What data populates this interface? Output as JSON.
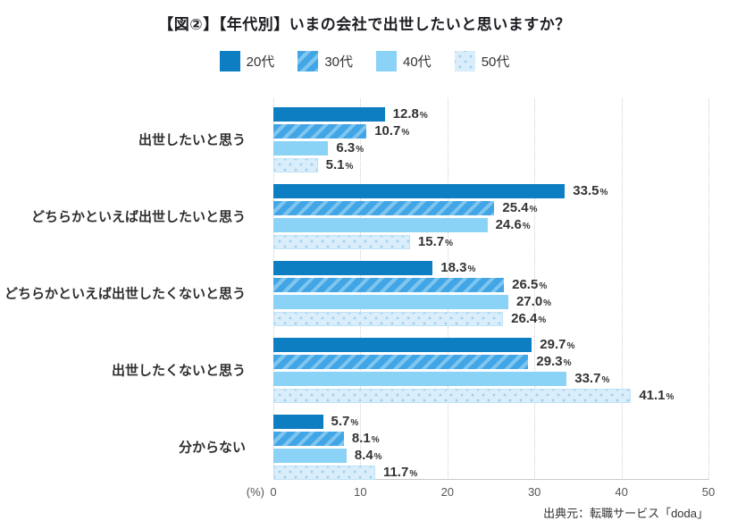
{
  "title": "【図②】【年代別】いまの会社で出世したいと思いますか？",
  "source": "出典元：転職サービス「doda」",
  "axis": {
    "unit_label": "(%)"
  },
  "colors": {
    "series_20s": "#0d7ec1",
    "series_30s_base": "#42a5e5",
    "series_30s_stripe": "#7ec6f0",
    "series_40s": "#8bd3f6",
    "series_50s_base": "#d9edfb",
    "series_50s_dot": "#9fcfec",
    "grid": "#cfcfcf",
    "text": "#333333"
  },
  "chart_data": {
    "type": "bar",
    "orientation": "horizontal",
    "title": "【図②】【年代別】いまの会社で出世したいと思いますか？",
    "categories": [
      "出世したいと思う",
      "どちらかといえば出世したいと思う",
      "どちらかといえば出世したくないと思う",
      "出世したくないと思う",
      "分からない"
    ],
    "series": [
      {
        "name": "20代",
        "pattern": "solid",
        "color": "#0d7ec1",
        "values": [
          12.8,
          33.5,
          18.3,
          29.7,
          5.7
        ],
        "value_labels": [
          "12.8",
          "33.5",
          "18.3",
          "29.7",
          "5.7"
        ]
      },
      {
        "name": "30代",
        "pattern": "stripes",
        "color": "#42a5e5",
        "stripe_color": "#7ec6f0",
        "values": [
          10.7,
          25.4,
          26.5,
          29.3,
          8.1
        ],
        "value_labels": [
          "10.7",
          "25.4",
          "26.5",
          "29.3",
          "8.1"
        ]
      },
      {
        "name": "40代",
        "pattern": "solid",
        "color": "#8bd3f6",
        "values": [
          6.3,
          24.6,
          27.0,
          33.7,
          8.4
        ],
        "value_labels": [
          "6.3",
          "24.6",
          "27.0",
          "33.7",
          "8.4"
        ]
      },
      {
        "name": "50代",
        "pattern": "dots",
        "color": "#d9edfb",
        "dot_color": "#9fcfec",
        "values": [
          5.1,
          15.7,
          26.4,
          41.1,
          11.7
        ],
        "value_labels": [
          "5.1",
          "15.7",
          "26.4",
          "41.1",
          "11.7"
        ]
      }
    ],
    "xlabel": "(%)",
    "ylabel": "",
    "xlim": [
      0,
      50
    ],
    "xticks": [
      0,
      10,
      20,
      30,
      40,
      50
    ],
    "grid": "vertical-dotted",
    "legend_position": "top-center",
    "value_suffix": "%"
  }
}
